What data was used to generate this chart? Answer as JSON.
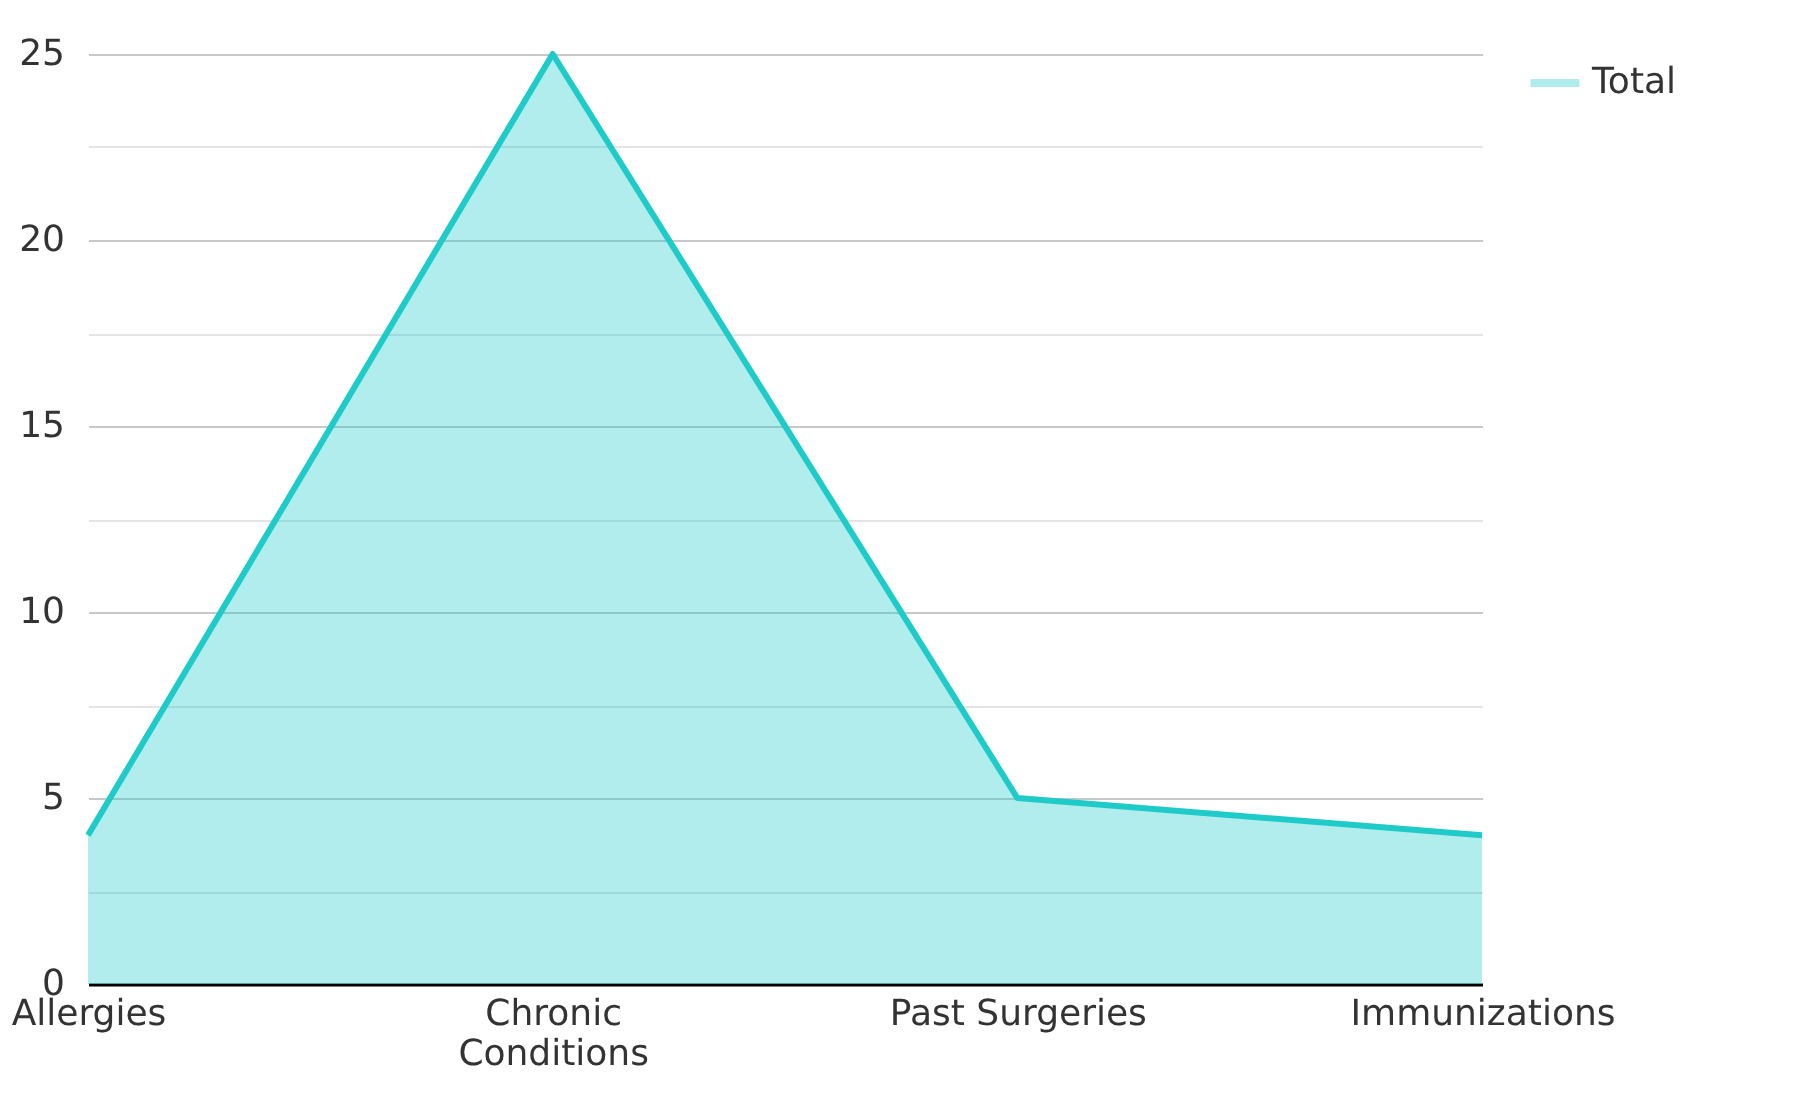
{
  "chart_data": {
    "type": "area",
    "categories": [
      "Allergies",
      "Chronic Conditions",
      "Past Surgeries",
      "Immunizations"
    ],
    "series": [
      {
        "name": "Total",
        "color": "#1ecbc9",
        "values": [
          4,
          25,
          5,
          4
        ]
      }
    ],
    "ylim": [
      0,
      25
    ],
    "yticks": [
      0,
      {
        "value": 2.5,
        "label": null
      },
      5,
      {
        "value": 7.5,
        "label": null
      },
      10,
      {
        "value": 12.5,
        "label": null
      },
      15,
      {
        "value": 17.5,
        "label": null
      },
      20,
      {
        "value": 22.5,
        "label": null
      },
      25
    ],
    "grid": "y",
    "legend": "top right"
  }
}
